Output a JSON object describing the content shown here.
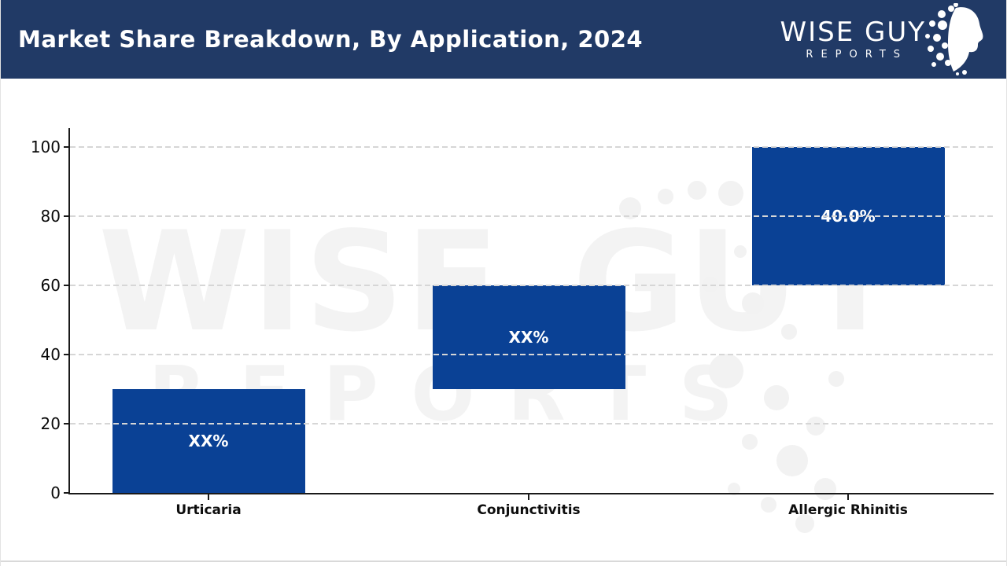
{
  "header": {
    "title": "Market Share Breakdown, By Application, 2024",
    "logo": {
      "line1": "WISE GUY",
      "line2": "REPORTS"
    }
  },
  "watermark": {
    "line1": "WISE GUY",
    "line2": "REPORTS"
  },
  "chart_data": {
    "type": "bar",
    "subtype": "floating-segment-waterfall",
    "title": "Market Share Breakdown, By Application, 2024",
    "categories": [
      "Urticaria",
      "Conjunctivitis",
      "Allergic Rhinitis"
    ],
    "bars": [
      {
        "category": "Urticaria",
        "start": 0,
        "end": 30,
        "label": "XX%"
      },
      {
        "category": "Conjunctivitis",
        "start": 30,
        "end": 60,
        "label": "XX%"
      },
      {
        "category": "Allergic Rhinitis",
        "start": 60,
        "end": 100,
        "label": "40.0%"
      }
    ],
    "yticks": [
      0,
      20,
      40,
      60,
      80,
      100
    ],
    "ylim": [
      0,
      100
    ],
    "xlabel": "",
    "ylabel": "",
    "legend": null,
    "grid": "horizontal-dashed-over-bars",
    "bar_color": "#0a4195"
  },
  "colors": {
    "header_bg": "#213a66",
    "bar_blue": "#0a4195",
    "grid_gray": "#d6d6d6",
    "axis_black": "#1a1a1a",
    "watermark_gray": "#f3f3f3",
    "bottom_rule": "#d9d9d9",
    "title_text": "#ffffff",
    "bar_label_text": "#ffffff"
  }
}
